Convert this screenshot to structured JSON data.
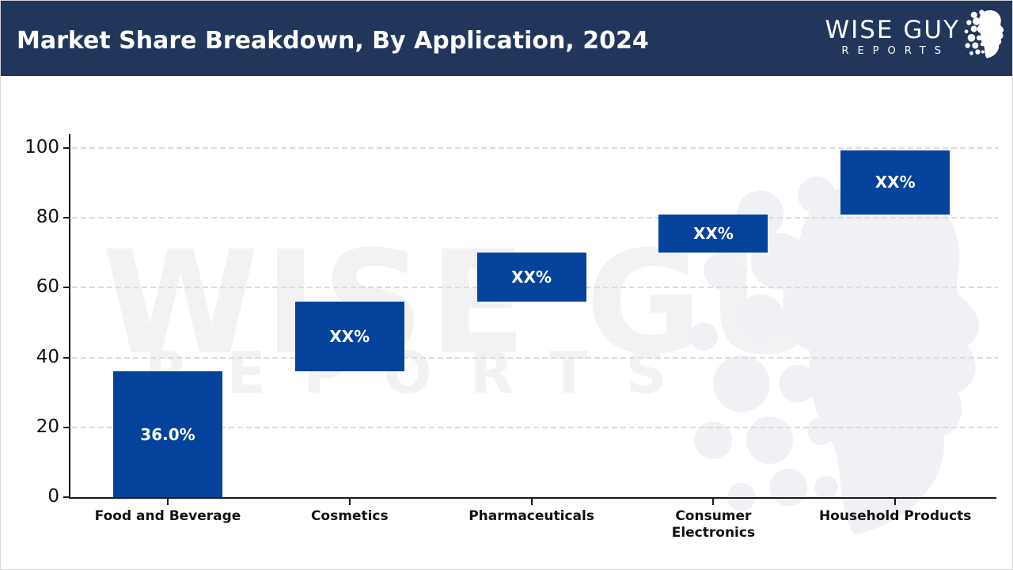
{
  "header": {
    "title": "Market Share Breakdown, By Application, 2024",
    "logo": {
      "line1": "WISE GUY",
      "line2": "REPORTS"
    }
  },
  "watermark": {
    "line1": "WISE GUY",
    "line2": "REPORTS"
  },
  "colors": {
    "header_bg": "#21365A",
    "bar": "#05429B",
    "axis": "#1a1a1a",
    "grid": "#dcdcdc",
    "watermark": "#f2f2f4",
    "bar_label": "#ffffff",
    "tick_label": "#111111"
  },
  "chart_data": {
    "type": "bar",
    "subtype": "waterfall-steps",
    "title": "Market Share Breakdown, By Application, 2024",
    "xlabel": "",
    "ylabel": "",
    "ylim": [
      0,
      100
    ],
    "yticks": [
      0,
      20,
      40,
      60,
      80,
      100
    ],
    "grid": "horizontal-dashed",
    "legend": "none",
    "categories": [
      "Food and Beverage",
      "Cosmetics",
      "Pharmaceuticals",
      "Consumer Electronics",
      "Household Products"
    ],
    "segments": [
      {
        "category": "Food and Beverage",
        "display": "Food and Beverage",
        "start": 0,
        "end": 36,
        "label": "36.0%"
      },
      {
        "category": "Cosmetics",
        "display": "Cosmetics",
        "start": 36,
        "end": 56,
        "label": "XX%"
      },
      {
        "category": "Pharmaceuticals",
        "display": "Pharmaceuticals",
        "start": 56,
        "end": 70,
        "label": "XX%"
      },
      {
        "category": "Consumer Electronics",
        "display": "Consumer\nElectronics",
        "start": 70,
        "end": 81,
        "label": "XX%"
      },
      {
        "category": "Household Products",
        "display": "Household Products",
        "start": 81,
        "end": 99.4,
        "label": "XX%"
      }
    ]
  }
}
